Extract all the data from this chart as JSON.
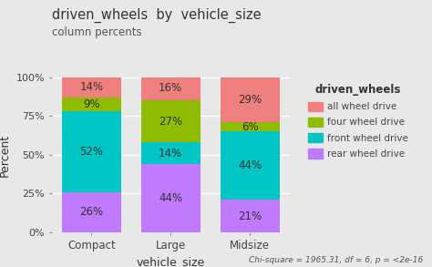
{
  "title": "driven_wheels  by  vehicle_size",
  "subtitle": "column percents",
  "xlabel": "vehicle_size",
  "ylabel": "Percent",
  "categories": [
    "Compact",
    "Large",
    "Midsize"
  ],
  "legend_title": "driven_wheels",
  "legend_labels": [
    "all wheel drive",
    "four wheel drive",
    "front wheel drive",
    "rear wheel drive"
  ],
  "colors": [
    "#f08080",
    "#8fbc00",
    "#00c5c5",
    "#c07aff"
  ],
  "data": {
    "rear_wheel": [
      26,
      44,
      21
    ],
    "front_wheel": [
      52,
      14,
      44
    ],
    "four_wheel": [
      9,
      27,
      6
    ],
    "all_wheel": [
      14,
      16,
      29
    ]
  },
  "bar_labels": {
    "rear_wheel": [
      "26%",
      "44%",
      "21%"
    ],
    "front_wheel": [
      "52%",
      "14%",
      "44%"
    ],
    "four_wheel": [
      "9%",
      "27%",
      "6%"
    ],
    "all_wheel": [
      "14%",
      "16%",
      "29%"
    ]
  },
  "footnote": "Chi-square = 1965.31, df = 6, p = <2e-16",
  "bg_color": "#e8e8e8",
  "panel_bg": "#e8e8e8",
  "grid_color": "#ffffff",
  "yticks": [
    0,
    25,
    50,
    75,
    100
  ],
  "ytick_labels": [
    "0%",
    "25%",
    "50%",
    "75%",
    "100%"
  ],
  "bar_width": 0.75,
  "figsize": [
    4.74,
    2.93
  ],
  "dpi": 100,
  "label_color": "#333333",
  "label_fontsize": 8.5
}
